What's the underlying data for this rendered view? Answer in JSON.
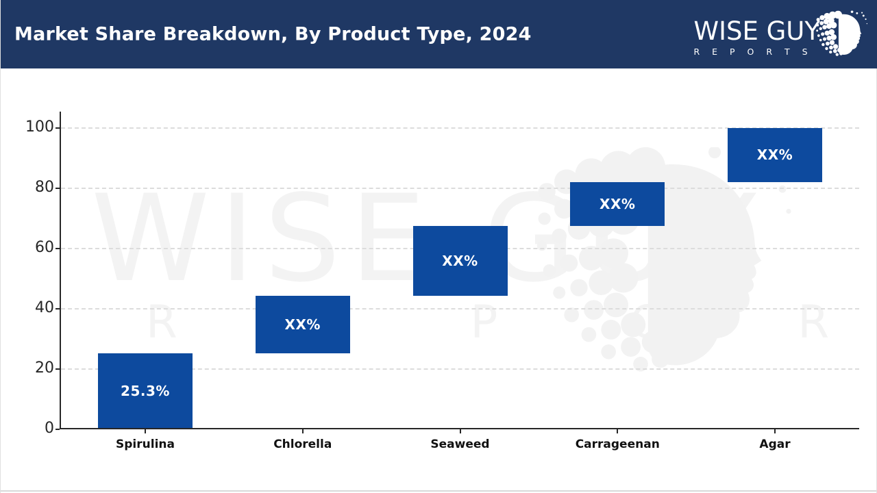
{
  "header": {
    "title": "Market Share Breakdown, By Product Type, 2024",
    "logo": {
      "line1": "WISE GUY",
      "line2": "R E P O R T S"
    }
  },
  "watermark": {
    "line1": "WISE GUY",
    "line2": "R E P O R T S"
  },
  "colors": {
    "header_bg": "#1f3864",
    "bar": "#0d4a9e",
    "bar_label": "#ffffff",
    "axis": "#262626",
    "gridline": "#dcdcdc",
    "watermark": "#f2f2f2"
  },
  "chart_data": {
    "type": "bar",
    "subtype": "waterfall",
    "title": "Market Share Breakdown, By Product Type, 2024",
    "xlabel": "",
    "ylabel": "",
    "categories": [
      "Spirulina",
      "Chlorella",
      "Seaweed",
      "Carrageenan",
      "Agar"
    ],
    "segments": [
      {
        "category": "Spirulina",
        "start": 0,
        "end": 25.3,
        "label": "25.3%"
      },
      {
        "category": "Chlorella",
        "start": 25.3,
        "end": 44.4,
        "label": "XX%"
      },
      {
        "category": "Seaweed",
        "start": 44.4,
        "end": 67.5,
        "label": "XX%"
      },
      {
        "category": "Carrageenan",
        "start": 67.5,
        "end": 82.1,
        "label": "XX%"
      },
      {
        "category": "Agar",
        "start": 82.1,
        "end": 100,
        "label": "XX%"
      }
    ],
    "yticks": [
      0,
      20,
      40,
      60,
      80,
      100
    ],
    "ylim": [
      0,
      100
    ],
    "grid": "horizontal-dashed",
    "legend": "none"
  }
}
